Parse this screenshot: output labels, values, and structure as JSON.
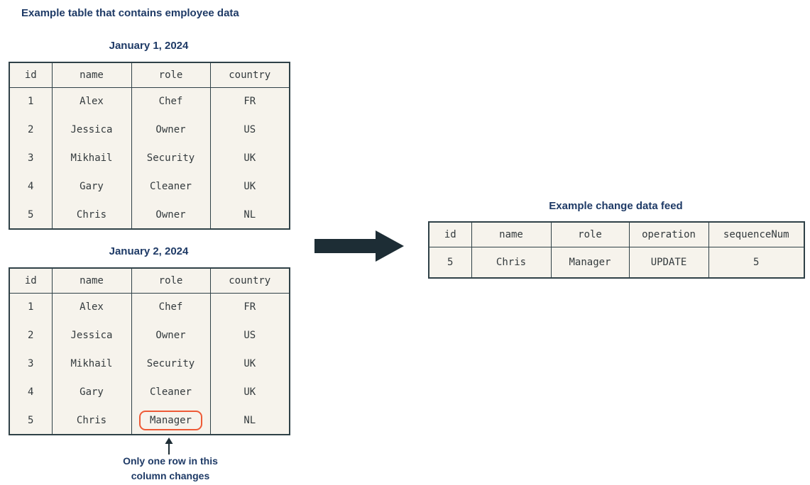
{
  "page_title": "Example table that contains employee data",
  "table1": {
    "title": "January 1, 2024",
    "headers": [
      "id",
      "name",
      "role",
      "country"
    ],
    "rows": [
      [
        "1",
        "Alex",
        "Chef",
        "FR"
      ],
      [
        "2",
        "Jessica",
        "Owner",
        "US"
      ],
      [
        "3",
        "Mikhail",
        "Security",
        "UK"
      ],
      [
        "4",
        "Gary",
        "Cleaner",
        "UK"
      ],
      [
        "5",
        "Chris",
        "Owner",
        "NL"
      ]
    ]
  },
  "table2": {
    "title": "January 2, 2024",
    "headers": [
      "id",
      "name",
      "role",
      "country"
    ],
    "rows": [
      [
        "1",
        "Alex",
        "Chef",
        "FR"
      ],
      [
        "2",
        "Jessica",
        "Owner",
        "US"
      ],
      [
        "3",
        "Mikhail",
        "Security",
        "UK"
      ],
      [
        "4",
        "Gary",
        "Cleaner",
        "UK"
      ],
      [
        "5",
        "Chris",
        "Manager",
        "NL"
      ]
    ],
    "highlight": {
      "row": 4,
      "col": 2,
      "value": "Manager"
    }
  },
  "caption": {
    "lines": [
      "Only one row in this",
      "column changes"
    ]
  },
  "cdf": {
    "title": "Example change data feed",
    "headers": [
      "id",
      "name",
      "role",
      "operation",
      "sequenceNum"
    ],
    "rows": [
      [
        "5",
        "Chris",
        "Manager",
        "UPDATE",
        "5"
      ]
    ]
  },
  "colors": {
    "title": "#1e3a66",
    "table_background": "#f6f3ec",
    "table_border": "#2f4147",
    "highlight": "#ee5a36",
    "arrow": "#1d2d35"
  }
}
